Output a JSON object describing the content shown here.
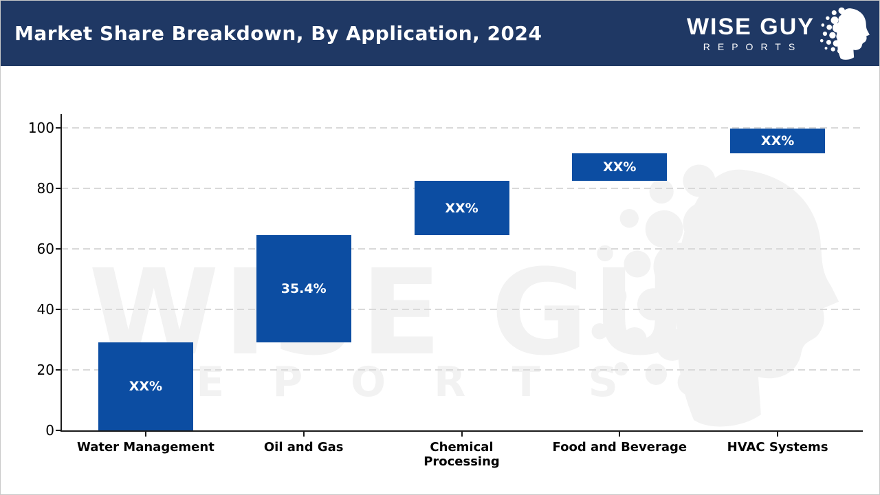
{
  "header": {
    "title": "Market Share Breakdown, By Application, 2024",
    "logo": {
      "line1": "WISE GUY",
      "line2": "REPORTS"
    }
  },
  "watermark": {
    "line1": "WISE GUY",
    "line2": "REPORTS"
  },
  "chart_data": {
    "type": "bar",
    "subtype": "waterfall",
    "title": "Market Share Breakdown, By Application, 2024",
    "categories": [
      "Water Management",
      "Oil and Gas",
      "Chemical Processing",
      "Food and Beverage",
      "HVAC Systems"
    ],
    "segments": [
      {
        "category": "Water Management",
        "start": 0,
        "end": 29.2,
        "label": "XX%"
      },
      {
        "category": "Oil and Gas",
        "start": 29.2,
        "end": 64.6,
        "label": "35.4%"
      },
      {
        "category": "Chemical Processing",
        "start": 64.6,
        "end": 82.4,
        "label": "XX%"
      },
      {
        "category": "Food and Beverage",
        "start": 82.4,
        "end": 91.6,
        "label": "XX%"
      },
      {
        "category": "HVAC Systems",
        "start": 91.6,
        "end": 99.8,
        "label": "XX%"
      }
    ],
    "yticks": [
      0,
      20,
      40,
      60,
      80,
      100
    ],
    "ylim": [
      0,
      104.5
    ],
    "xlabel": "",
    "ylabel": "",
    "grid": "horizontal-dashed",
    "legend": "none",
    "bar_color": "#0c4da2",
    "grid_color": "#d9d9d9",
    "axis_color": "#1a1a1a",
    "label_color": "#ffffff"
  },
  "colors": {
    "header_bg": "#1f3864",
    "page_bg": "#ffffff",
    "watermark": "#f2f2f2",
    "border": "#c9c9c9"
  }
}
